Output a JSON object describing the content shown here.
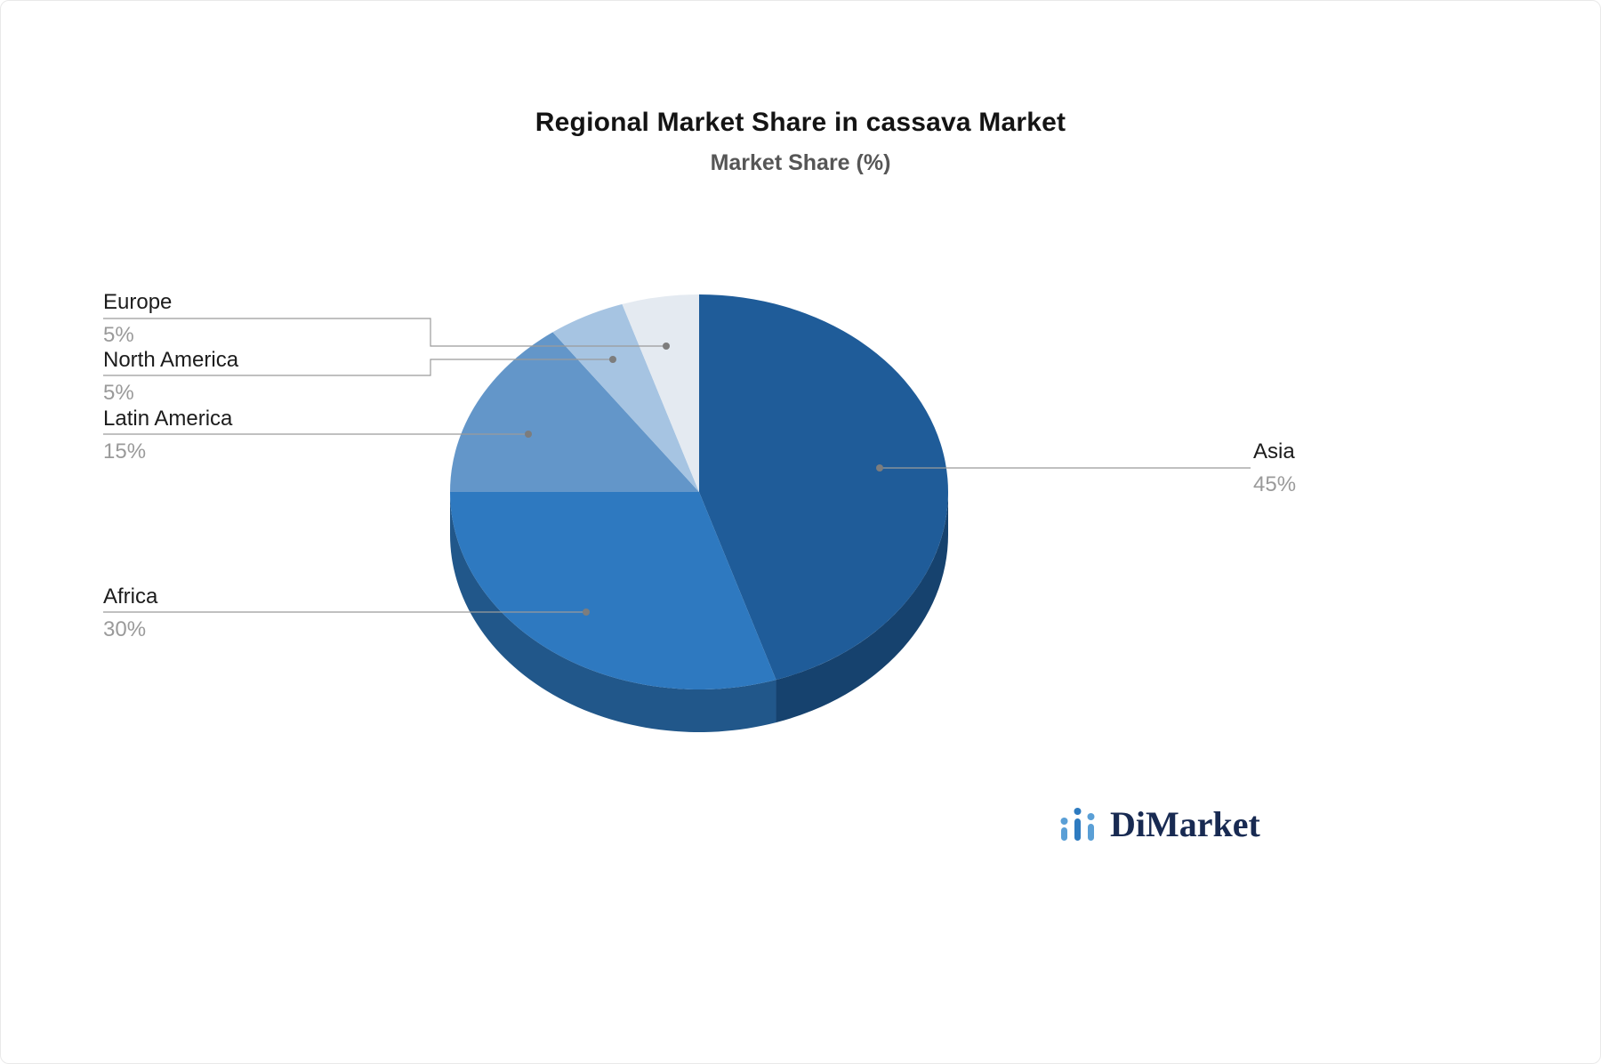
{
  "chart_data": {
    "type": "pie",
    "style": "3d-pie",
    "title": "Regional Market Share in cassava Market",
    "subtitle": "Market Share (%)",
    "unit": "%",
    "legend_position": "callout-labels",
    "start_angle_deg": -90,
    "direction": "clockwise",
    "slices": [
      {
        "label": "Asia",
        "value": 45,
        "pct": "45%",
        "color": "#1F5C99"
      },
      {
        "label": "Africa",
        "value": 30,
        "pct": "30%",
        "color": "#2E79C0"
      },
      {
        "label": "Latin America",
        "value": 15,
        "pct": "15%",
        "color": "#6396C9"
      },
      {
        "label": "North America",
        "value": 5,
        "pct": "5%",
        "color": "#A6C4E2"
      },
      {
        "label": "Europe",
        "value": 5,
        "pct": "5%",
        "color": "#E4EAF1"
      }
    ]
  },
  "branding": {
    "logo_text": "DiMarket",
    "logo_icon": "bar-chart-icon",
    "logo_text_color": "#182a52",
    "logo_icon_color": "#2e7bc0"
  }
}
